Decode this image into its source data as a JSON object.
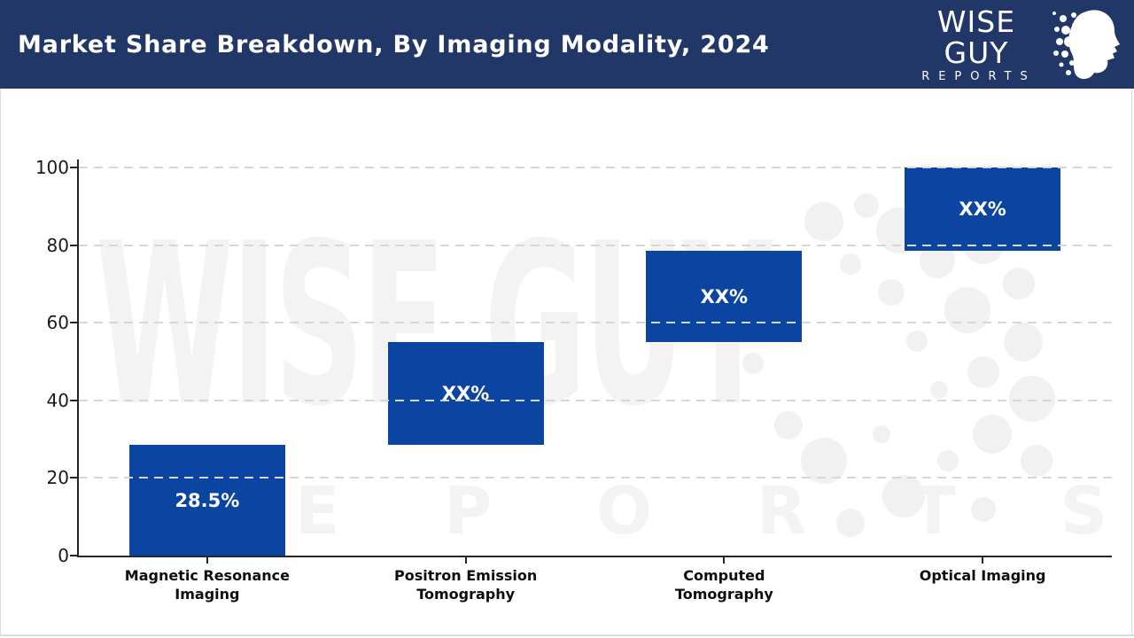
{
  "header": {
    "title": "Market Share Breakdown, By Imaging Modality, 2024",
    "logo": {
      "line1": "WISE GUY",
      "line2": "REPORTS"
    }
  },
  "watermark": {
    "line1": "WISE GUY",
    "line2": "R E P O R T S"
  },
  "chart_data": {
    "type": "bar",
    "subtype": "waterfall",
    "title": "Market Share Breakdown, By Imaging Modality, 2024",
    "categories": [
      "Magnetic Resonance\nImaging",
      "Positron Emission\nTomography",
      "Computed\nTomography",
      "Optical Imaging"
    ],
    "series": [
      {
        "name": "Market share (%)",
        "ranges": [
          [
            0,
            28.5
          ],
          [
            28.5,
            55
          ],
          [
            55,
            78.5
          ],
          [
            78.5,
            100
          ]
        ],
        "labels": [
          "28.5%",
          "XX%",
          "XX%",
          "XX%"
        ]
      }
    ],
    "ylim": [
      0,
      105
    ],
    "yticks": [
      0,
      20,
      40,
      60,
      80,
      100
    ],
    "xlabel": "",
    "ylabel": "",
    "grid": {
      "horizontal": true,
      "style": "dashed",
      "over_bars": true
    },
    "legend": false,
    "bar_color": "#0b44a1",
    "bar_label_color": "#ffffff"
  },
  "colors": {
    "header_bg": "#213767",
    "bar": "#0b44a1",
    "axis": "#262626",
    "grid": "#d7d7d7",
    "watermark": "#f3f3f3",
    "frame": "#dcdcdc"
  }
}
